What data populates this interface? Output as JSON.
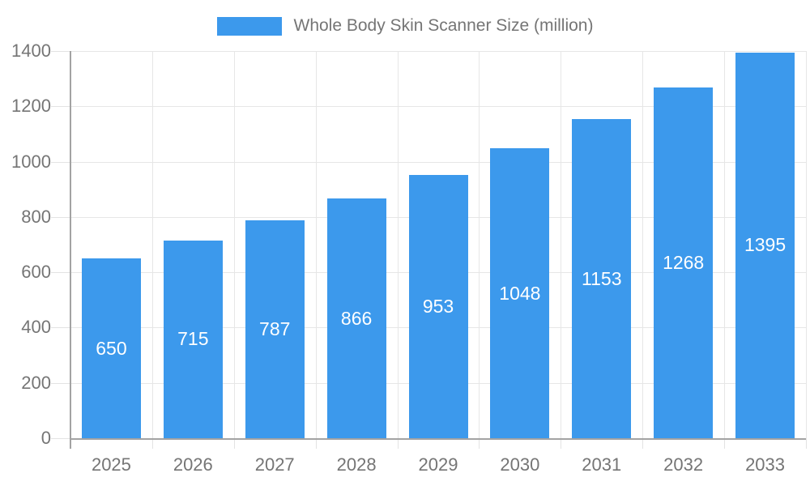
{
  "chart_data": {
    "type": "bar",
    "title": "Whole Body Skin Scanner Size (million)",
    "categories": [
      "2025",
      "2026",
      "2027",
      "2028",
      "2029",
      "2030",
      "2031",
      "2032",
      "2033"
    ],
    "values": [
      650,
      715,
      787,
      866,
      953,
      1048,
      1153,
      1268,
      1395
    ],
    "xlabel": "",
    "ylabel": "",
    "ylim": [
      0,
      1400
    ],
    "yticks": [
      0,
      200,
      400,
      600,
      800,
      1000,
      1200,
      1400
    ],
    "grid": "both",
    "legend_position": "top",
    "bar_color": "#3c99ec",
    "value_label_color": "#ffffff",
    "axis_text_color": "#757575",
    "gridline_color": "#e6e6e6",
    "axis_line_color": "#a3a3a3"
  },
  "legend": {
    "label": "Whole Body Skin Scanner Size (million)"
  }
}
